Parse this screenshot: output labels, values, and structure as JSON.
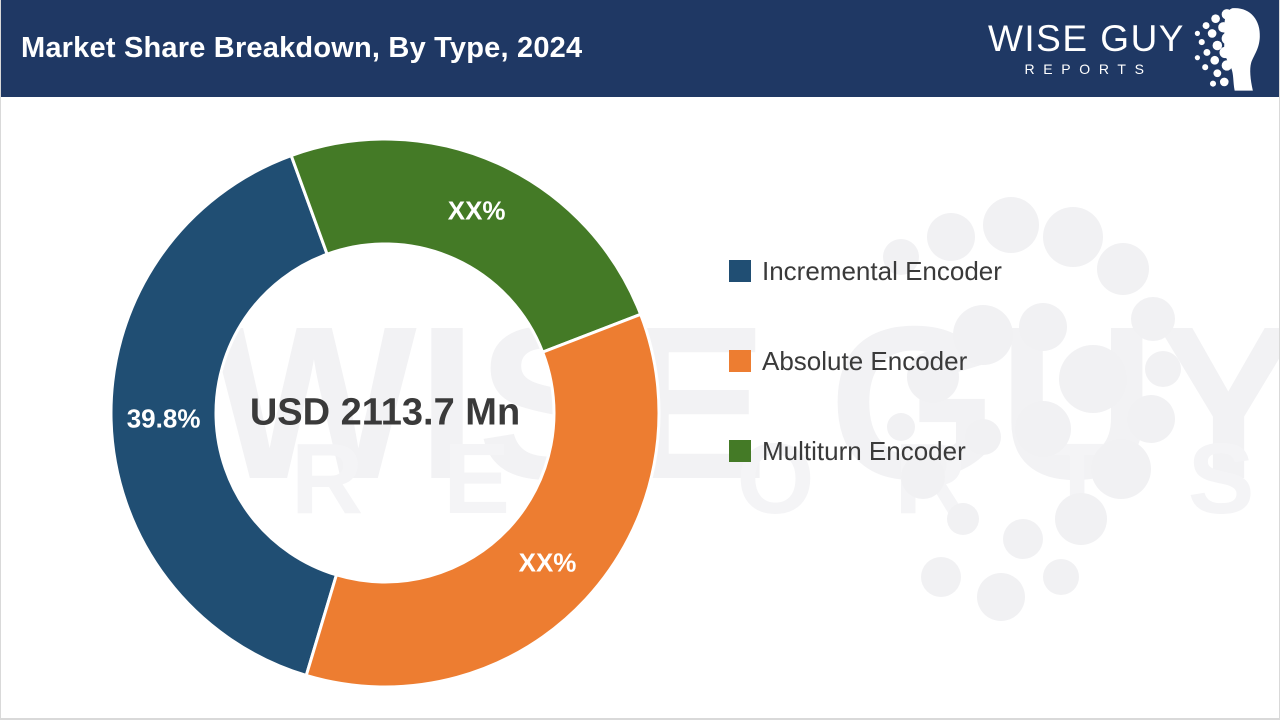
{
  "header": {
    "title": "Market Share Breakdown, By Type, 2024",
    "background": "#1F3864",
    "logo": {
      "line1": "WISE GUY",
      "line2": "REPORTS"
    }
  },
  "center_label": "USD 2113.7 Mn",
  "watermark": {
    "line1": "WISE GUY",
    "line2": "REPORTS"
  },
  "chart_data": {
    "type": "pie",
    "subtype": "donut",
    "title": "Market Share Breakdown, By Type, 2024",
    "center_label": "USD 2113.7 Mn",
    "categories": [
      "Incremental Encoder",
      "Absolute Encoder",
      "Multiturn Encoder"
    ],
    "series": [
      {
        "name": "Incremental Encoder",
        "value_pct": 39.8,
        "displayed_label": "39.8%",
        "color": "#204E73"
      },
      {
        "name": "Absolute Encoder",
        "value_pct": 35.5,
        "displayed_label": "XX%",
        "color": "#ED7D31"
      },
      {
        "name": "Multiturn Encoder",
        "value_pct": 24.7,
        "displayed_label": "XX%",
        "color": "#447A26"
      }
    ],
    "legend_position": "right",
    "start_angle_deg": 196.7,
    "slice_order": [
      0,
      2,
      1
    ],
    "inner_radius_ratio": 0.615,
    "gap_stroke_color": "#FFFFFF"
  },
  "legend": {
    "items": [
      {
        "label": "Incremental Encoder",
        "color": "#204E73"
      },
      {
        "label": "Absolute Encoder",
        "color": "#ED7D31"
      },
      {
        "label": "Multiturn Encoder",
        "color": "#447A26"
      }
    ]
  }
}
